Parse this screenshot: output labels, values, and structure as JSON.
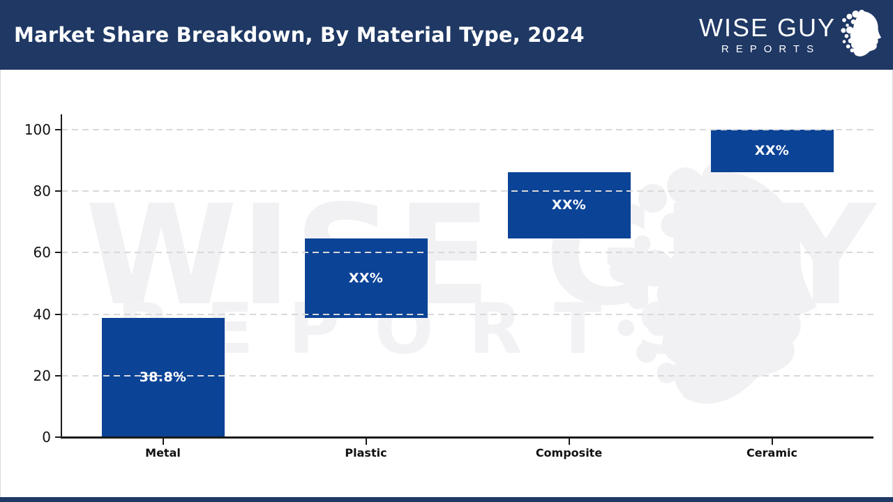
{
  "header": {
    "title": "Market Share Breakdown, By Material Type, 2024",
    "logo": {
      "line1": "WISE GUY",
      "line2": "REPORTS"
    }
  },
  "watermark": {
    "line1": "WISE GUY",
    "line2": "REPORTS"
  },
  "colors": {
    "header_bg": "#1F3864",
    "footer_bg": "#1F3864",
    "bar": "#0B4397",
    "bar_label": "#FFFFFF",
    "gridline": "#D9D9D9",
    "axis": "#1A1A1A",
    "watermark": "#F1F1F4"
  },
  "chart_data": {
    "type": "bar",
    "subtype": "waterfall",
    "title": "Market Share Breakdown, By Material Type, 2024",
    "categories": [
      "Metal",
      "Plastic",
      "Composite",
      "Ceramic"
    ],
    "segments": [
      {
        "category": "Metal",
        "start": 0,
        "end": 38.8,
        "label": "38.8%"
      },
      {
        "category": "Plastic",
        "start": 38.8,
        "end": 64.6,
        "label": "XX%"
      },
      {
        "category": "Composite",
        "start": 64.6,
        "end": 86.2,
        "label": "XX%"
      },
      {
        "category": "Ceramic",
        "start": 86.2,
        "end": 100.0,
        "label": "XX%"
      }
    ],
    "yticks": [
      0,
      20,
      40,
      60,
      80,
      100
    ],
    "ylim": [
      0,
      105
    ],
    "xlabel": "",
    "ylabel": "",
    "grid": "horizontal-dashed",
    "legend": "none"
  }
}
